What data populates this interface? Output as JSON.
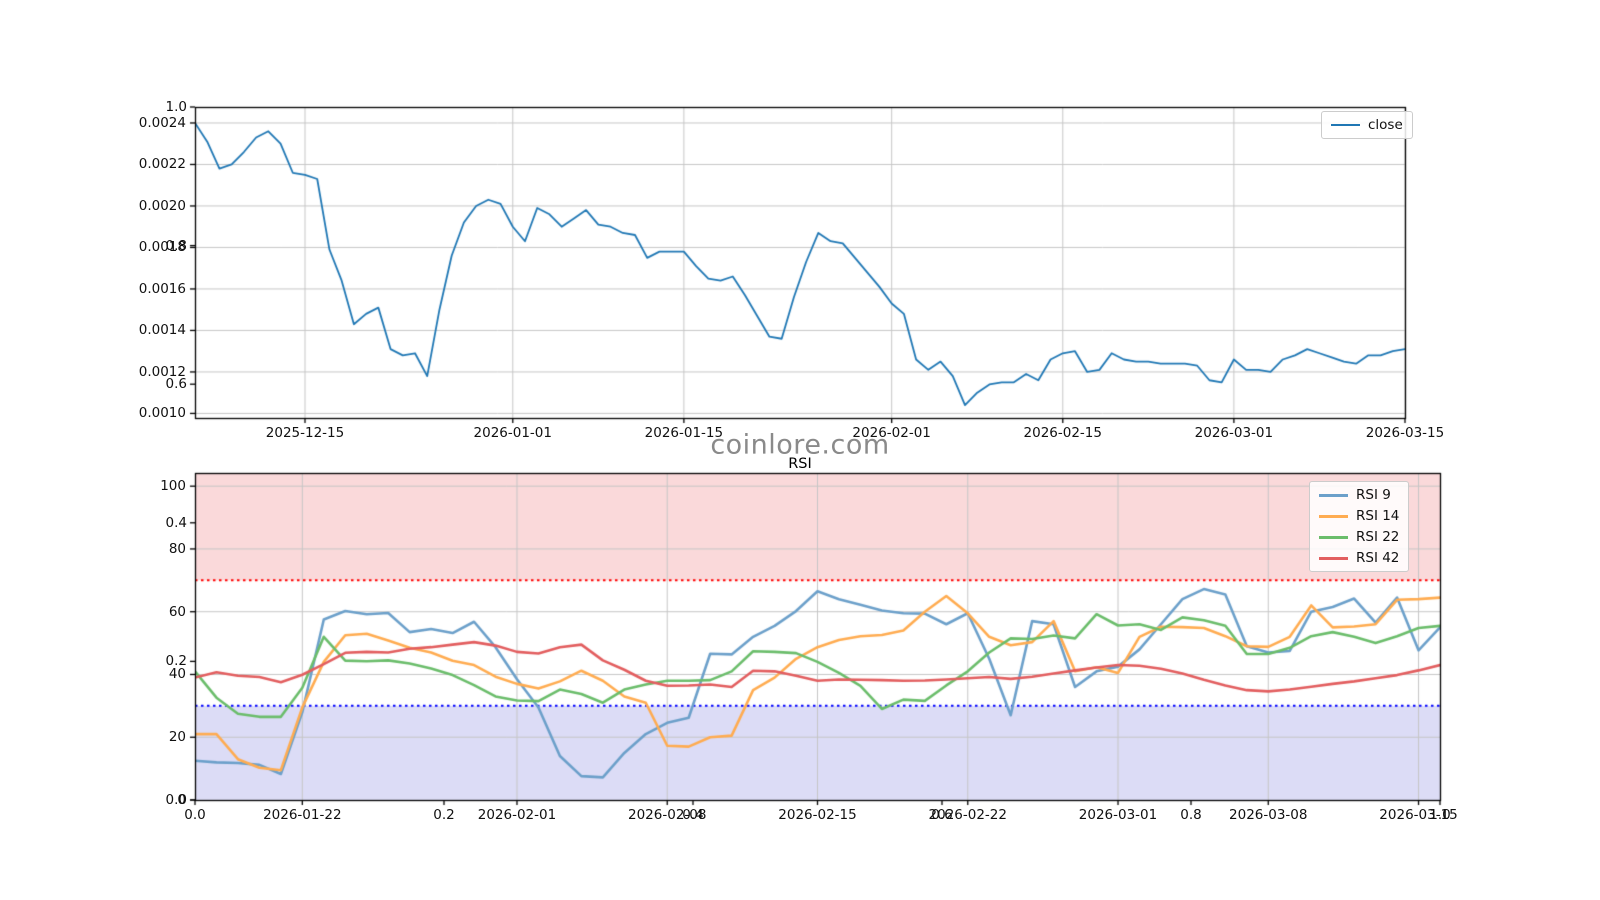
{
  "watermark": "coinlore.com",
  "overlay_axis": {
    "x_labels": [
      "0.0",
      "0.2",
      "0.4",
      "0.6",
      "0.8",
      "1.0"
    ],
    "y_labels": [
      "1.0",
      "0.8",
      "0.6",
      "0.4",
      "0.2",
      "0.0"
    ]
  },
  "chart_data": [
    {
      "type": "line",
      "name": "price-chart",
      "title": "",
      "legend_position": "upper right",
      "grid": true,
      "x_tick_labels": [
        "2025-12-15",
        "2026-01-01",
        "2026-01-15",
        "2026-02-01",
        "2026-02-15",
        "2026-03-01",
        "2026-03-15"
      ],
      "x_tick_days": [
        9,
        26,
        40,
        57,
        71,
        85,
        99
      ],
      "x_days_total": 99,
      "y_tick_labels": [
        "0.0010",
        "0.0012",
        "0.0014",
        "0.0016",
        "0.0018",
        "0.0020",
        "0.0022",
        "0.0024"
      ],
      "y_tick_values": [
        0.001,
        0.0012,
        0.0014,
        0.0016,
        0.0018,
        0.002,
        0.0022,
        0.0024
      ],
      "ylim": [
        0.000978,
        0.002477
      ],
      "series": [
        {
          "name": "close",
          "color": "#1f77b4",
          "width": 1.8,
          "values": [
            0.0024,
            0.00231,
            0.00218,
            0.0022,
            0.00226,
            0.00233,
            0.00236,
            0.0023,
            0.00216,
            0.00215,
            0.00213,
            0.00179,
            0.00164,
            0.00143,
            0.00148,
            0.00151,
            0.00131,
            0.00128,
            0.00129,
            0.00118,
            0.0015,
            0.00176,
            0.00192,
            0.002,
            0.00203,
            0.00201,
            0.0019,
            0.00183,
            0.00199,
            0.00196,
            0.0019,
            0.00194,
            0.00198,
            0.00191,
            0.0019,
            0.00187,
            0.00186,
            0.00175,
            0.00178,
            0.00178,
            0.00178,
            0.00171,
            0.00165,
            0.00164,
            0.00166,
            0.00157,
            0.00147,
            0.00137,
            0.00136,
            0.00156,
            0.00173,
            0.00187,
            0.00183,
            0.00182,
            0.00175,
            0.00168,
            0.00161,
            0.00153,
            0.00148,
            0.00126,
            0.00121,
            0.00125,
            0.00118,
            0.00104,
            0.0011,
            0.00114,
            0.00115,
            0.00115,
            0.00119,
            0.00116,
            0.00126,
            0.00129,
            0.0013,
            0.0012,
            0.00121,
            0.00129,
            0.00126,
            0.00125,
            0.00125,
            0.00124,
            0.00124,
            0.00124,
            0.00123,
            0.00116,
            0.00115,
            0.00126,
            0.00121,
            0.00121,
            0.0012,
            0.00126,
            0.00128,
            0.00131,
            0.00129,
            0.00127,
            0.00125,
            0.00124,
            0.00128,
            0.00128,
            0.0013,
            0.00131
          ]
        }
      ]
    },
    {
      "type": "line",
      "name": "rsi-chart",
      "title": "RSI",
      "legend_position": "upper right",
      "grid": true,
      "x_tick_labels": [
        "2026-01-22",
        "2026-02-01",
        "2026-02-08",
        "2026-02-15",
        "2026-02-22",
        "2026-03-01",
        "2026-03-08",
        "2026-03-15"
      ],
      "x_tick_days": [
        5,
        15,
        22,
        29,
        36,
        43,
        50,
        57
      ],
      "x_days_total": 58,
      "y_tick_labels": [
        "0",
        "20",
        "40",
        "60",
        "80",
        "100"
      ],
      "y_tick_values": [
        0,
        20,
        40,
        60,
        80,
        100
      ],
      "ylim": [
        0,
        104.2
      ],
      "bands": [
        {
          "from": 70,
          "to": 104.2,
          "color": "#fad9da"
        },
        {
          "from": 0,
          "to": 30,
          "color": "#dcdcf6"
        }
      ],
      "hlines": [
        {
          "value": 70,
          "color": "#ff0000",
          "style": "dotted"
        },
        {
          "value": 30,
          "color": "#0000ff",
          "style": "dotted"
        }
      ],
      "series": [
        {
          "name": "RSI 9",
          "color": "#6ca0ca",
          "width": 2.6,
          "values": [
            12.5,
            12,
            11.8,
            11.2,
            8.3,
            28,
            57.5,
            60.2,
            59.2,
            59.6,
            53.5,
            54.5,
            53.2,
            56.8,
            48.7,
            38.5,
            29.5,
            14,
            7.6,
            7.2,
            15,
            21,
            24.6,
            26.2,
            46.6,
            46.4,
            52,
            55.5,
            60.2,
            66.5,
            64,
            62.2,
            60.4,
            59.5,
            59.4,
            56,
            59.5,
            45,
            27,
            57,
            56,
            36,
            41,
            42.5,
            48,
            56,
            64,
            67.2,
            65.5,
            49,
            47,
            47.5,
            60,
            61.5,
            64.2,
            56.5,
            64.5,
            47.7,
            55
          ]
        },
        {
          "name": "RSI 14",
          "color": "#ffac51",
          "width": 2.6,
          "values": [
            21,
            21,
            13,
            10.3,
            9.5,
            29.5,
            44,
            52.5,
            53,
            50.8,
            48.5,
            47,
            44.4,
            43,
            39.3,
            37,
            35.5,
            37.8,
            41.2,
            38,
            33,
            31,
            17.3,
            17,
            20,
            20.5,
            35,
            39,
            45,
            48.7,
            51,
            52.2,
            52.6,
            54,
            60,
            65,
            59.5,
            52,
            49.3,
            50.3,
            57,
            41,
            42.3,
            40.5,
            52,
            55.2,
            55.1,
            54.8,
            52.2,
            49,
            48.8,
            52,
            62,
            55,
            55.3,
            56,
            63.8,
            64,
            64.5
          ]
        },
        {
          "name": "RSI 22",
          "color": "#6bbd6b",
          "width": 2.6,
          "values": [
            41,
            32.6,
            27.5,
            26.5,
            26.5,
            35.8,
            52,
            44.4,
            44.2,
            44.5,
            43.5,
            41.9,
            39.8,
            36.6,
            33,
            31.7,
            31.5,
            35.2,
            33.8,
            31,
            35.2,
            36.8,
            38,
            38,
            38.2,
            41,
            47.4,
            47.2,
            46.8,
            44,
            40.5,
            36.4,
            29,
            32,
            31.6,
            36.5,
            41,
            47,
            51.5,
            51.3,
            52.4,
            51.5,
            59.2,
            55.6,
            56,
            54.2,
            58.2,
            57.3,
            55.5,
            46.5,
            46.5,
            48.5,
            52.2,
            53.5,
            52,
            50,
            52.2,
            54.8,
            55.5
          ]
        },
        {
          "name": "RSI 42",
          "color": "#e25e5f",
          "width": 2.6,
          "values": [
            39,
            40.7,
            39.6,
            39.2,
            37.5,
            39.9,
            43.3,
            46.9,
            47.2,
            47,
            48.2,
            48.7,
            49.5,
            50.3,
            49.2,
            47.2,
            46.7,
            48.7,
            49.5,
            44.5,
            41.5,
            38,
            36.4,
            36.5,
            36.8,
            36,
            41.2,
            41,
            39.6,
            38,
            38.4,
            38.3,
            38.2,
            38,
            38.1,
            38.4,
            38.8,
            39.2,
            38.6,
            39.3,
            40.3,
            41.3,
            42.2,
            43,
            42.8,
            41.8,
            40.3,
            38.3,
            36.5,
            35,
            34.6,
            35.2,
            36.1,
            37,
            37.8,
            38.8,
            39.8,
            41.3,
            43
          ]
        }
      ]
    }
  ]
}
